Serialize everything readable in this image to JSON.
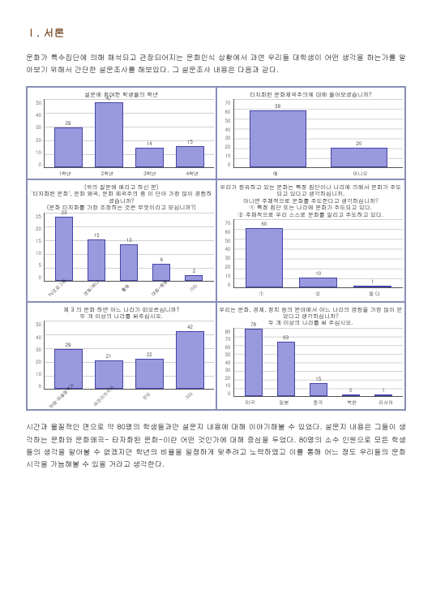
{
  "title": "Ⅰ. 서론",
  "intro": "문화가 특수집단에 의해 해석되고 관장되어지는 문화인식 상황에서 과연 우리들 대학생이 어떤 생각을 하는가를 알아보기 위해서 간단한 설문조사를 해보았다. 그 설문조사 내용은 다음과 같다.",
  "charts": [
    {
      "title": "설문에 참여한 학생들의 학년",
      "yticks": [
        "0",
        "10",
        "20",
        "30",
        "40",
        "50"
      ],
      "ymax": 50,
      "bars": [
        {
          "label": "1학년",
          "value": 29
        },
        {
          "label": "2학년",
          "value": 47
        },
        {
          "label": "3학년",
          "value": 14
        },
        {
          "label": "4학년",
          "value": 15
        }
      ],
      "rotated": false
    },
    {
      "title": "타자화된 문화제국주의에 대해 들어보셨습니까?",
      "yticks": [
        "0",
        "10",
        "20",
        "30",
        "40",
        "50",
        "60",
        "70"
      ],
      "ymax": 70,
      "bars": [
        {
          "label": "예",
          "value": 58
        },
        {
          "label": "아니오",
          "value": 20
        }
      ],
      "rotated": false
    },
    {
      "title": "(위의 질문에 예라고 하신 분)<br>'타자화된 문화', 문화 왜곡, 문화 제국주의 중 이 단어 가장 많이 경험하셨습니까?<br>(문화 타자화를 가장 조장하는 것은 무엇이라고 보십니까?)",
      "yticks": [
        "0",
        "5",
        "10",
        "15",
        "20",
        "25"
      ],
      "ymax": 25,
      "bars": [
        {
          "label": "TV프로그램",
          "value": 23
        },
        {
          "label": "영화/애니",
          "value": 15
        },
        {
          "label": "활동",
          "value": 13
        },
        {
          "label": "대화-행동",
          "value": 6
        },
        {
          "label": "기타",
          "value": 2
        }
      ],
      "rotated": true
    },
    {
      "title": "우리가 향유하고 있는 문화는 특정 집단이나 나라에 의해서 문화가 주도되고 있다고 생각하십니까,<br>아니면 주체적으로 문화를 주도한다고 생각하십니까?<br>① 특정 집단 또는 나라에 문화가 주도되고 있다.<br>② 주체적으로 우리 스스로 문화를 알리고 주도하고 있다.",
      "yticks": [
        "0",
        "10",
        "20",
        "30",
        "40",
        "50",
        "60",
        "70"
      ],
      "ymax": 70,
      "bars": [
        {
          "label": "①",
          "value": 60
        },
        {
          "label": "②",
          "value": 10
        },
        {
          "label": "둘 다",
          "value": 1
        }
      ],
      "rotated": false
    },
    {
      "title": "제 3 의 문화 하면 어느 나라가 떠오르십니까?<br>두 개 이상의 나라를 써주십시오.",
      "yticks": [
        "0",
        "10",
        "20",
        "30",
        "40",
        "50"
      ],
      "ymax": 50,
      "bars": [
        {
          "label": "아랍·이슬람국가",
          "value": 29
        },
        {
          "label": "아프리카국가",
          "value": 21
        },
        {
          "label": "인도",
          "value": 22
        },
        {
          "label": "기타",
          "value": 42
        }
      ],
      "rotated": true
    },
    {
      "title": "우리는 문화, 경제, 정치 등의 분야에서 어느 나라의 영향을 가장 많이 받았다고 생각하십니까?<br>두 개 이상의 나라를 써 주십시오.",
      "yticks": [
        "0",
        "10",
        "20",
        "30",
        "40",
        "50",
        "60",
        "70",
        "80"
      ],
      "ymax": 80,
      "bars": [
        {
          "label": "미국",
          "value": 78
        },
        {
          "label": "일본",
          "value": 63
        },
        {
          "label": "중국",
          "value": 15
        },
        {
          "label": "북한",
          "value": 0
        },
        {
          "label": "러시아",
          "value": 1
        }
      ],
      "rotated": false
    }
  ],
  "bottom": "시간과 물질적인 면으로 약 80명의 학생들과만 설문지 내용에 대해 이야기해볼 수 있었다. 설문지 내용은 그들이 생각하는 문화와 문화왜곡- 타자화된 문화-이란 어떤 것인가에 대해 중심을 두었다. 80명의 소수 인원으로 모든 학생들의 생각을 알아볼 수 없겠지만 학년의 비율을 일정하게 맞추려고 노력하였고 이를 통해 어느 정도 우리들의 문화 시각을 가늠해볼 수 있을 거라고 생각한다.",
  "colors": {
    "bar_fill": "#9999dd",
    "bar_border": "#4444aa",
    "grid_border": "#888eb8",
    "title_color": "#7a4a2a"
  }
}
